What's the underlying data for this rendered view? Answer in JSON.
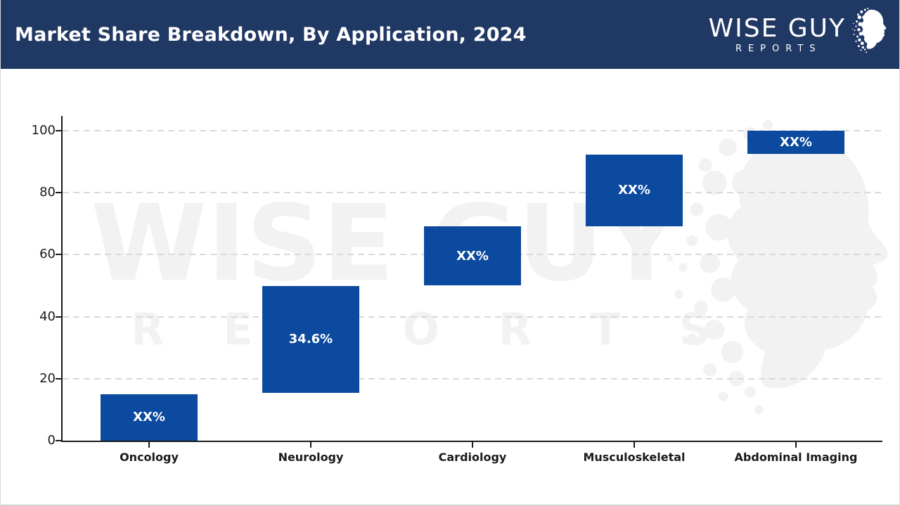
{
  "header": {
    "title": "Market Share Breakdown, By Application, 2024",
    "logo": {
      "line1": "WISE GUY",
      "line2": "REPORTS",
      "head_icon": "dotted-head-profile"
    },
    "bg_color": "#203864",
    "text_color": "#ffffff"
  },
  "watermark": {
    "line1": "WISE GUY",
    "line2": "R E P O R T S",
    "color": "#f2f2f2"
  },
  "chart_data": {
    "type": "bar",
    "subtype": "floating-waterfall",
    "title": "Market Share Breakdown, By Application, 2024",
    "categories": [
      "Oncology",
      "Neurology",
      "Cardiology",
      "Musculoskeletal",
      "Abdominal Imaging"
    ],
    "series": [
      {
        "name": "Market share (%)",
        "segments": [
          {
            "start": 0,
            "end": 15,
            "label": "XX%"
          },
          {
            "start": 15.4,
            "end": 50,
            "label": "34.6%"
          },
          {
            "start": 50,
            "end": 69.2,
            "label": "XX%"
          },
          {
            "start": 69.2,
            "end": 92.3,
            "label": "XX%"
          },
          {
            "start": 92.5,
            "end": 100,
            "label": "XX%"
          }
        ]
      }
    ],
    "ylim": [
      0,
      104.8
    ],
    "yticks": [
      0,
      20,
      40,
      60,
      80,
      100
    ],
    "grid": "horizontal-dashed",
    "legend": "none",
    "bar_color": "#0b4a9e",
    "bar_label_color": "#ffffff",
    "axis_color": "#1a1a1a",
    "gridline_color": "#d9d9d9"
  }
}
